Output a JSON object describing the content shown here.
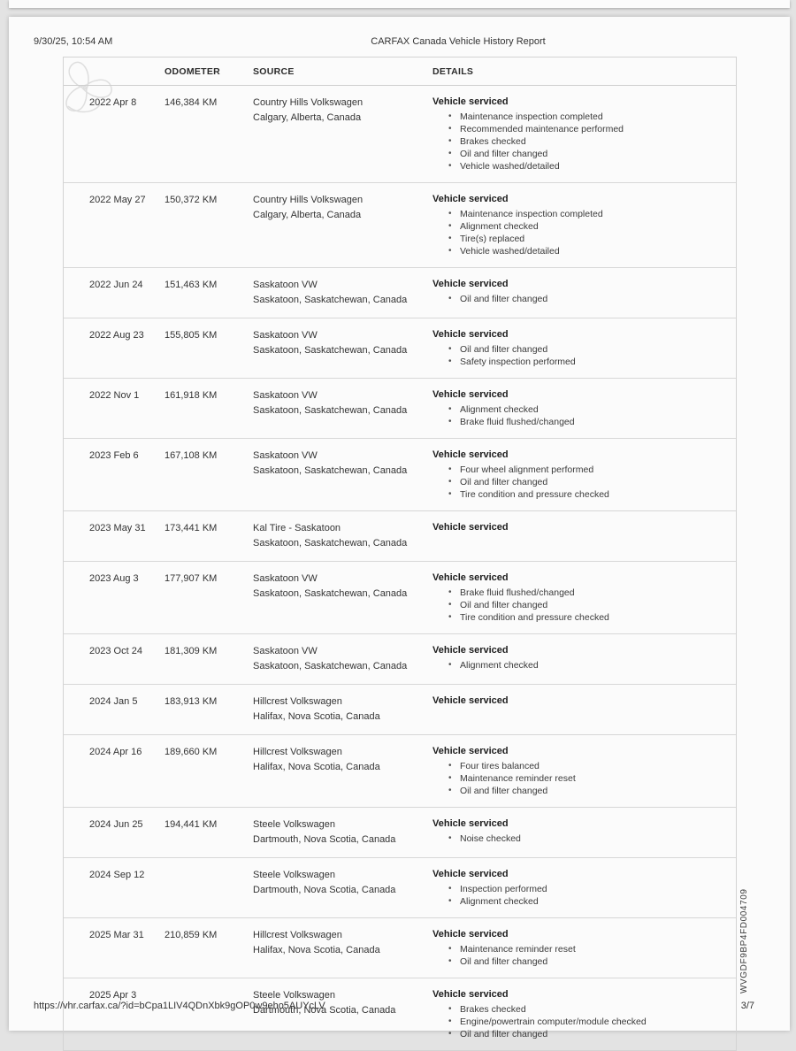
{
  "meta": {
    "timestamp": "9/30/25, 10:54 AM",
    "title": "CARFAX Canada Vehicle History Report"
  },
  "columns": [
    "ODOMETER",
    "SOURCE",
    "DETAILS"
  ],
  "rows": [
    {
      "date": "2022 Apr 8",
      "odometer": "146,384 KM",
      "source": {
        "name": "Country Hills Volkswagen",
        "location": "Calgary, Alberta, Canada"
      },
      "details": {
        "title": "Vehicle serviced",
        "items": [
          "Maintenance inspection completed",
          "Recommended maintenance performed",
          "Brakes checked",
          "Oil and filter changed",
          "Vehicle washed/detailed"
        ]
      }
    },
    {
      "date": "2022 May 27",
      "odometer": "150,372 KM",
      "source": {
        "name": "Country Hills Volkswagen",
        "location": "Calgary, Alberta, Canada"
      },
      "details": {
        "title": "Vehicle serviced",
        "items": [
          "Maintenance inspection completed",
          "Alignment checked",
          "Tire(s) replaced",
          "Vehicle washed/detailed"
        ]
      }
    },
    {
      "date": "2022 Jun 24",
      "odometer": "151,463 KM",
      "source": {
        "name": "Saskatoon VW",
        "location": "Saskatoon, Saskatchewan, Canada"
      },
      "details": {
        "title": "Vehicle serviced",
        "items": [
          "Oil and filter changed"
        ]
      }
    },
    {
      "date": "2022 Aug 23",
      "odometer": "155,805 KM",
      "source": {
        "name": "Saskatoon VW",
        "location": "Saskatoon, Saskatchewan, Canada"
      },
      "details": {
        "title": "Vehicle serviced",
        "items": [
          "Oil and filter changed",
          "Safety inspection performed"
        ]
      }
    },
    {
      "date": "2022 Nov 1",
      "odometer": "161,918 KM",
      "source": {
        "name": "Saskatoon VW",
        "location": "Saskatoon, Saskatchewan, Canada"
      },
      "details": {
        "title": "Vehicle serviced",
        "items": [
          "Alignment checked",
          "Brake fluid flushed/changed"
        ]
      }
    },
    {
      "date": "2023 Feb 6",
      "odometer": "167,108 KM",
      "source": {
        "name": "Saskatoon VW",
        "location": "Saskatoon, Saskatchewan, Canada"
      },
      "details": {
        "title": "Vehicle serviced",
        "items": [
          "Four wheel alignment performed",
          "Oil and filter changed",
          "Tire condition and pressure checked"
        ]
      }
    },
    {
      "date": "2023 May 31",
      "odometer": "173,441 KM",
      "source": {
        "name": "Kal Tire - Saskatoon",
        "location": "Saskatoon, Saskatchewan, Canada"
      },
      "details": {
        "title": "Vehicle serviced",
        "items": []
      }
    },
    {
      "date": "2023 Aug 3",
      "odometer": "177,907 KM",
      "source": {
        "name": "Saskatoon VW",
        "location": "Saskatoon, Saskatchewan, Canada"
      },
      "details": {
        "title": "Vehicle serviced",
        "items": [
          "Brake fluid flushed/changed",
          "Oil and filter changed",
          "Tire condition and pressure checked"
        ]
      }
    },
    {
      "date": "2023 Oct 24",
      "odometer": "181,309 KM",
      "source": {
        "name": "Saskatoon VW",
        "location": "Saskatoon, Saskatchewan, Canada"
      },
      "details": {
        "title": "Vehicle serviced",
        "items": [
          "Alignment checked"
        ]
      }
    },
    {
      "date": "2024 Jan 5",
      "odometer": "183,913 KM",
      "source": {
        "name": "Hillcrest Volkswagen",
        "location": "Halifax, Nova Scotia, Canada"
      },
      "details": {
        "title": "Vehicle serviced",
        "items": []
      }
    },
    {
      "date": "2024 Apr 16",
      "odometer": "189,660 KM",
      "source": {
        "name": "Hillcrest Volkswagen",
        "location": "Halifax, Nova Scotia, Canada"
      },
      "details": {
        "title": "Vehicle serviced",
        "items": [
          "Four tires balanced",
          "Maintenance reminder reset",
          "Oil and filter changed"
        ]
      }
    },
    {
      "date": "2024 Jun 25",
      "odometer": "194,441 KM",
      "source": {
        "name": "Steele Volkswagen",
        "location": "Dartmouth, Nova Scotia, Canada"
      },
      "details": {
        "title": "Vehicle serviced",
        "items": [
          "Noise checked"
        ]
      }
    },
    {
      "date": "2024 Sep 12",
      "odometer": "",
      "source": {
        "name": "Steele Volkswagen",
        "location": "Dartmouth, Nova Scotia, Canada"
      },
      "details": {
        "title": "Vehicle serviced",
        "items": [
          "Inspection performed",
          "Alignment checked"
        ]
      }
    },
    {
      "date": "2025 Mar 31",
      "odometer": "210,859 KM",
      "source": {
        "name": "Hillcrest Volkswagen",
        "location": "Halifax, Nova Scotia, Canada"
      },
      "details": {
        "title": "Vehicle serviced",
        "items": [
          "Maintenance reminder reset",
          "Oil and filter changed"
        ]
      }
    },
    {
      "date": "2025 Apr 3",
      "odometer": "",
      "source": {
        "name": "Steele Volkswagen",
        "location": "Dartmouth, Nova Scotia, Canada"
      },
      "details": {
        "title": "Vehicle serviced",
        "items": [
          "Brakes checked",
          "Engine/powertrain computer/module checked",
          "Oil and filter changed"
        ]
      }
    }
  ],
  "vin": "WVGDF9BP4FD004709",
  "footer": {
    "url": "https://vhr.carfax.ca/?id=bCpa1LIV4QDnXbk9gOP0w9eho5AUYcLV",
    "page": "3/7"
  },
  "colors": {
    "page_background": "#fbfbfb",
    "backdrop": "#e3e3e3",
    "border": "#d3d3d3",
    "text": "#333333",
    "bold_text": "#1c1c1c"
  }
}
